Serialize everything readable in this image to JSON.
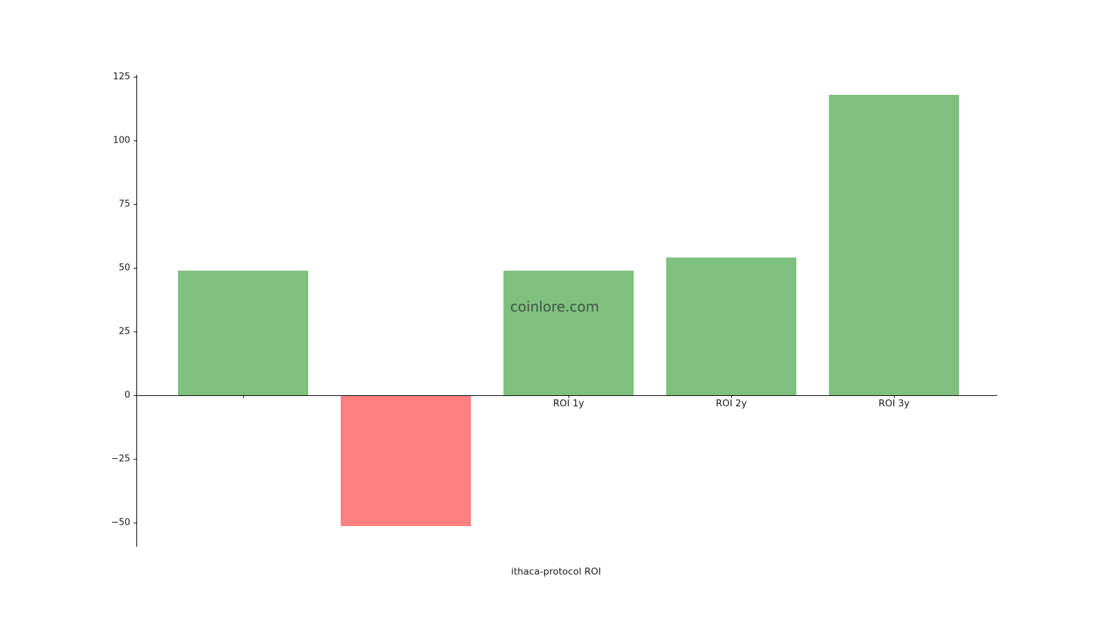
{
  "watermark": {
    "text": "coinlore.com"
  },
  "chart_data": {
    "type": "bar",
    "title": "ithaca-protocol ROI",
    "categories": [
      "",
      "",
      "ROI 1y",
      "ROI 2y",
      "ROI 3y"
    ],
    "values": [
      49,
      -51,
      49,
      54,
      118
    ],
    "xlabel": "",
    "ylabel": "",
    "yticks": [
      125,
      100,
      75,
      50,
      25,
      0,
      -25,
      -50
    ],
    "ylim": [
      -59,
      127
    ],
    "grid": false,
    "legend_position": "none",
    "colors": {
      "positive_bar": "#7ec07e",
      "negative_bar": "#ff8080",
      "axis": "#000000",
      "tick_text": "#1a1a1a",
      "watermark_text": "#2a2a2a"
    }
  }
}
